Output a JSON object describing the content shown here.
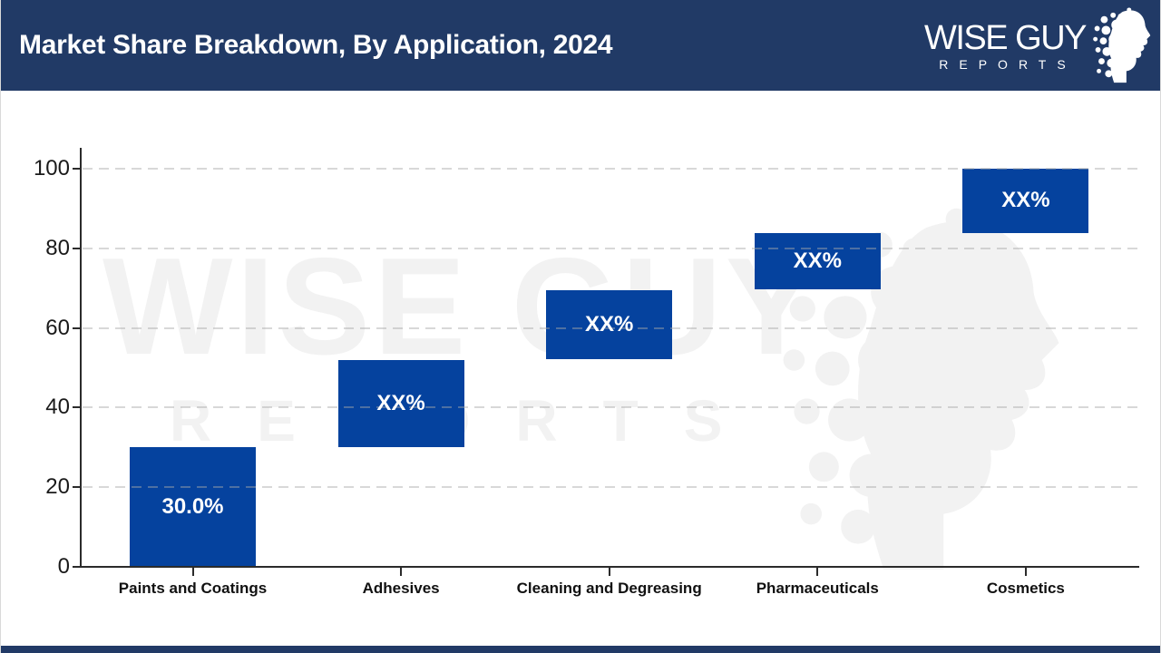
{
  "header": {
    "title": "Market Share Breakdown, By Application, 2024"
  },
  "logo": {
    "line1": "WISE GUY",
    "line2": "REPORTS"
  },
  "watermark": {
    "line1": "WISE GUY",
    "line2": "REPORTS"
  },
  "colors": {
    "header_bg": "#213a66",
    "footer_bg": "#213a66",
    "bar": "#05429e",
    "axis": "#2b2b2b",
    "grid": "#d9d9d9",
    "bar_label_text": "#ffffff",
    "watermark": "#f2f2f2"
  },
  "chart_data": {
    "type": "bar",
    "subtype": "waterfall",
    "title": "Market Share Breakdown, By Application, 2024",
    "xlabel": "",
    "ylabel": "",
    "ylim": [
      0,
      100
    ],
    "grid": "dashed horizontal",
    "y_ticks": [
      0,
      20,
      40,
      60,
      80,
      100
    ],
    "categories": [
      "Paints and Coatings",
      "Adhesives",
      "Cleaning and Degreasing",
      "Pharmaceuticals",
      "Cosmetics"
    ],
    "bars": [
      {
        "category": "Paints and Coatings",
        "start": 0,
        "end": 30,
        "label": "30.0%"
      },
      {
        "category": "Adhesives",
        "start": 30,
        "end": 51.9,
        "label": "XX%"
      },
      {
        "category": "Cleaning and Degreasing",
        "start": 52.2,
        "end": 69.4,
        "label": "XX%"
      },
      {
        "category": "Pharmaceuticals",
        "start": 69.6,
        "end": 83.8,
        "label": "XX%"
      },
      {
        "category": "Cosmetics",
        "start": 83.9,
        "end": 100,
        "label": "XX%"
      }
    ]
  }
}
